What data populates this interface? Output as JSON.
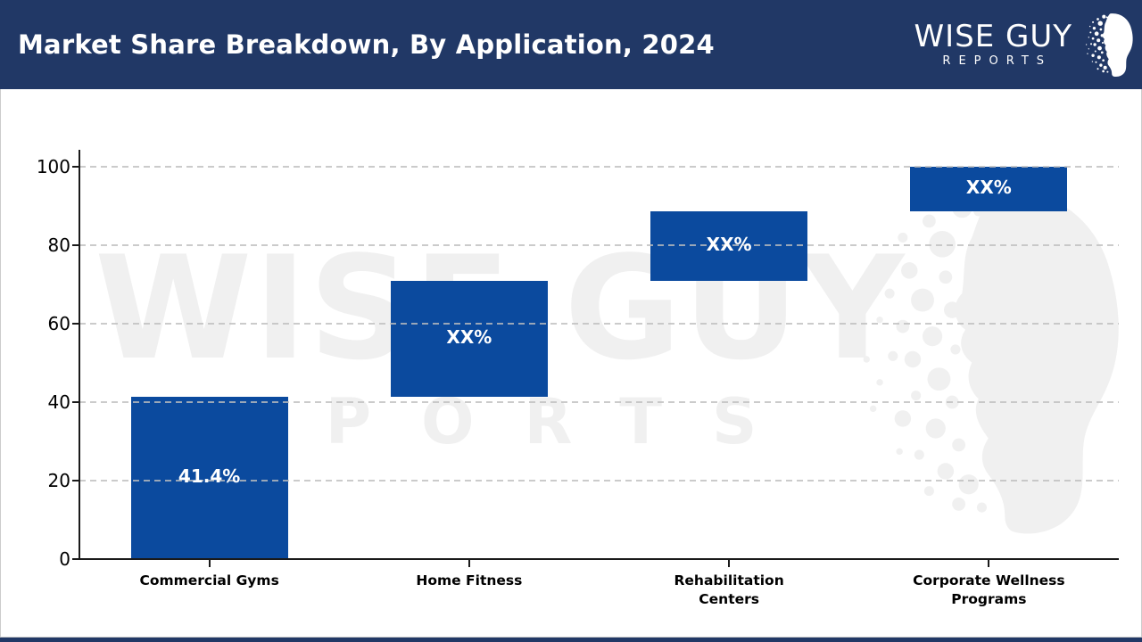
{
  "header": {
    "title": "Market Share Breakdown, By Application, 2024",
    "logo": {
      "line1": "WISE GUY",
      "line2": "REPORTS",
      "head_icon": "dotted-head-profile"
    }
  },
  "watermark": {
    "line1": "WISE GUY",
    "line2": "REPORTS",
    "head_icon": "dotted-head-profile"
  },
  "colors": {
    "header_bg": "#213866",
    "bar": "#0b4a9e",
    "grid_line": "#bebebe",
    "axis": "#1a1a1a",
    "watermark": "#f0f0f0",
    "label_on_bar": "#ffffff"
  },
  "chart_data": {
    "type": "bar",
    "subtype": "waterfall",
    "title": "Market Share Breakdown, By Application, 2024",
    "categories": [
      "Commercial Gyms",
      "Home Fitness",
      "Rehabilitation\nCenters",
      "Corporate Wellness\nPrograms"
    ],
    "segments": [
      {
        "category": "Commercial Gyms",
        "start": 0,
        "end": 41.4,
        "value": 41.4,
        "label": "41.4%"
      },
      {
        "category": "Home Fitness",
        "start": 41.4,
        "end": 70.8,
        "value": 29.4,
        "label": "XX%"
      },
      {
        "category": "Rehabilitation Centers",
        "start": 70.8,
        "end": 88.6,
        "value": 17.8,
        "label": "XX%"
      },
      {
        "category": "Corporate Wellness Programs",
        "start": 88.6,
        "end": 100,
        "value": 11.4,
        "label": "XX%"
      }
    ],
    "yticks": [
      0,
      20,
      40,
      60,
      80,
      100
    ],
    "ylim": [
      0,
      104
    ],
    "xlabel": "",
    "ylabel": "",
    "grid": "horizontal-dashed-over-bars",
    "legend": "none"
  }
}
